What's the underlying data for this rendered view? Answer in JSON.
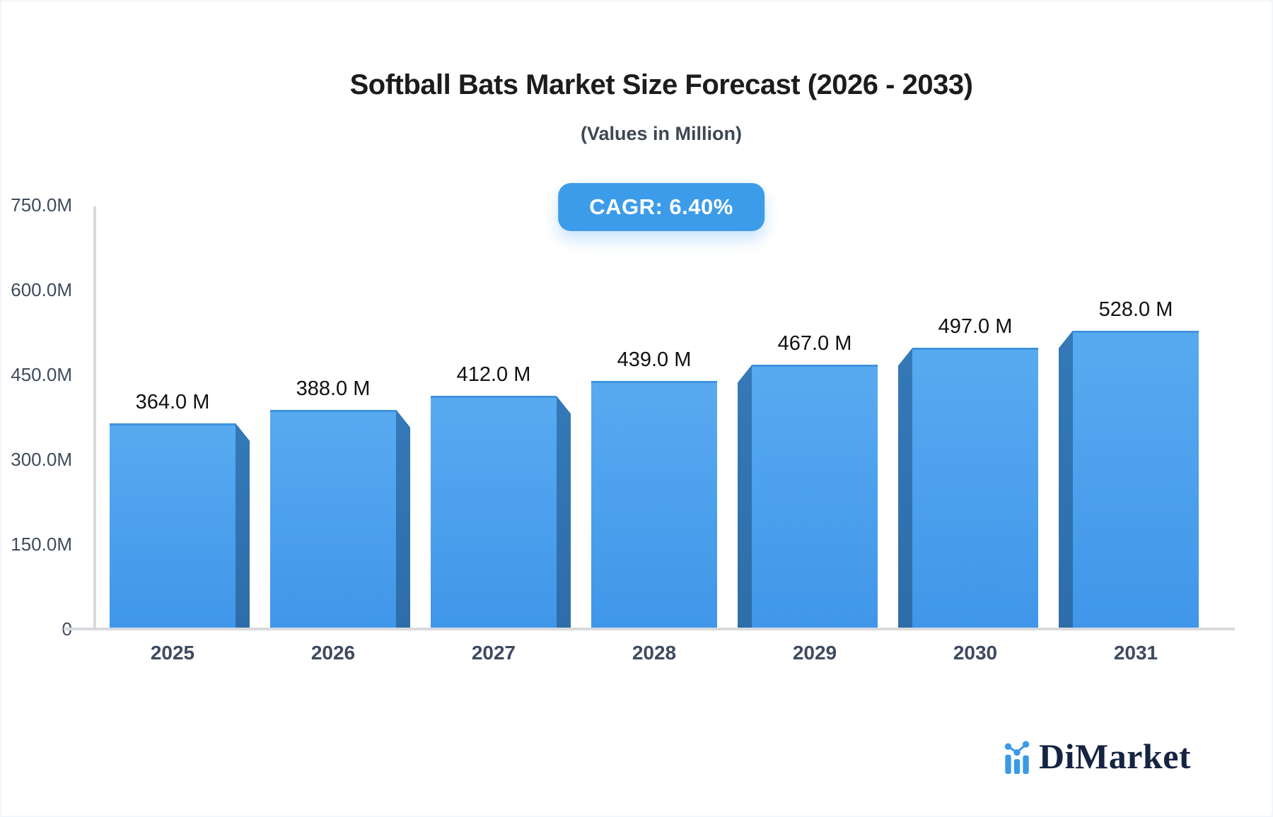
{
  "page": {
    "title": "Softball Bats Market Size Forecast (2026 - 2033)",
    "subtitle": "(Values in Million)"
  },
  "badge": {
    "label": "CAGR: 6.40%"
  },
  "brand": {
    "name": "DiMarket"
  },
  "chart_data": {
    "type": "bar",
    "title": "Softball Bats Market Size Forecast (2026 - 2033)",
    "subtitle": "(Values in Million)",
    "cagr_percent": "6.40%",
    "unit": "Million",
    "categories": [
      "2025",
      "2026",
      "2027",
      "2028",
      "2029",
      "2030",
      "2031"
    ],
    "values": [
      364.0,
      388.0,
      412.0,
      439.0,
      467.0,
      497.0,
      528.0
    ],
    "value_labels": [
      "364.0 M",
      "388.0 M",
      "412.0 M",
      "439.0 M",
      "467.0 M",
      "497.0 M",
      "528.0 M"
    ],
    "y_ticks": [
      {
        "label": "750.0M",
        "value": 750
      },
      {
        "label": "600.0M",
        "value": 600
      },
      {
        "label": "450.0M",
        "value": 450
      },
      {
        "label": "300.0M",
        "value": 300
      },
      {
        "label": "150.0M",
        "value": 150
      },
      {
        "label": "0",
        "value": 0,
        "dash": true
      }
    ],
    "ylim": [
      0,
      750
    ],
    "grid": false,
    "legend": false,
    "colors": {
      "bar_top": "#58aaf0",
      "bar_bottom": "#4096e9",
      "bar_edge": "#3f92dd",
      "bar_side": "#3479b8",
      "bar_side_dark": "#2e6da9",
      "badge_bg": "#3d9ce9",
      "axis_line": "#d8dade",
      "tick_text": "#3f4b5e",
      "category_text": "#3d4a61",
      "value_text": "#111111",
      "title_text": "#1b1c1e",
      "subtitle_text": "#3e4752",
      "brand_navy": "#152441",
      "brand_blue": "#3b9ae8"
    }
  }
}
